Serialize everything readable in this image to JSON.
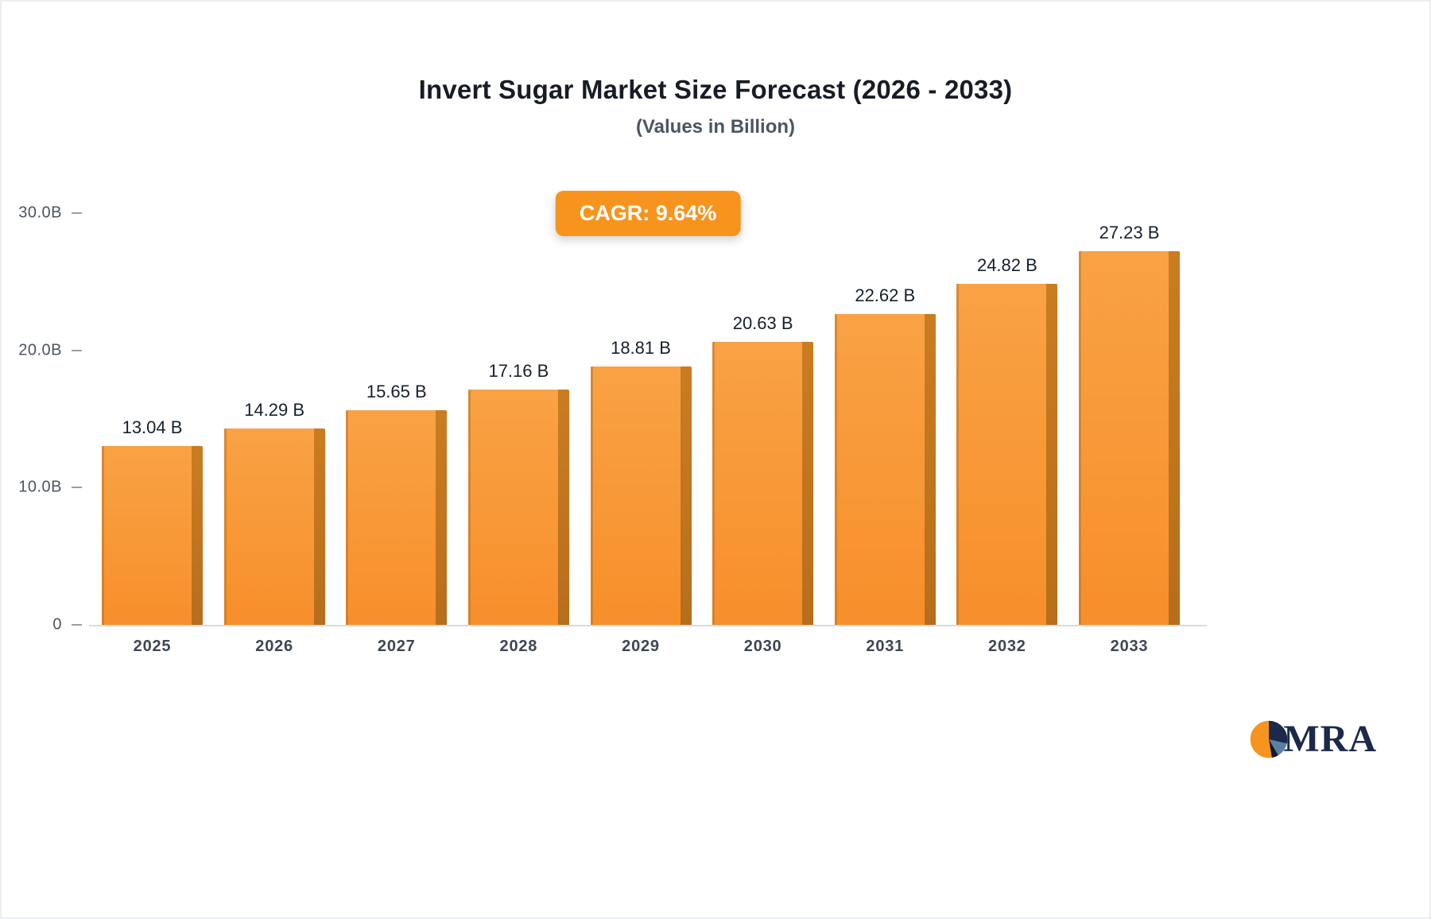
{
  "chart_data": {
    "type": "bar",
    "title": "Invert Sugar Market Size Forecast (2026 - 2033)",
    "subtitle": "(Values in Billion)",
    "cagr_label": "CAGR: 9.64%",
    "categories": [
      "2025",
      "2026",
      "2027",
      "2028",
      "2029",
      "2030",
      "2031",
      "2032",
      "2033"
    ],
    "values": [
      13.04,
      14.29,
      15.65,
      17.16,
      18.81,
      20.63,
      22.62,
      24.82,
      27.23
    ],
    "value_labels": [
      "13.04 B",
      "14.29 B",
      "15.65 B",
      "17.16 B",
      "18.81 B",
      "20.63 B",
      "22.62 B",
      "24.82 B",
      "27.23 B"
    ],
    "xlabel": "",
    "ylabel": "",
    "ylim": [
      0,
      30
    ],
    "yticks": [
      {
        "value": 0,
        "label": "0"
      },
      {
        "value": 10,
        "label": "10.0B"
      },
      {
        "value": 20,
        "label": "20.0B"
      },
      {
        "value": 30,
        "label": "30.0B"
      }
    ],
    "grid": false,
    "legend": false,
    "bar_color": "#f7941e",
    "bar_side_color": "#b76e1c"
  },
  "logo": {
    "text": "MRA"
  }
}
